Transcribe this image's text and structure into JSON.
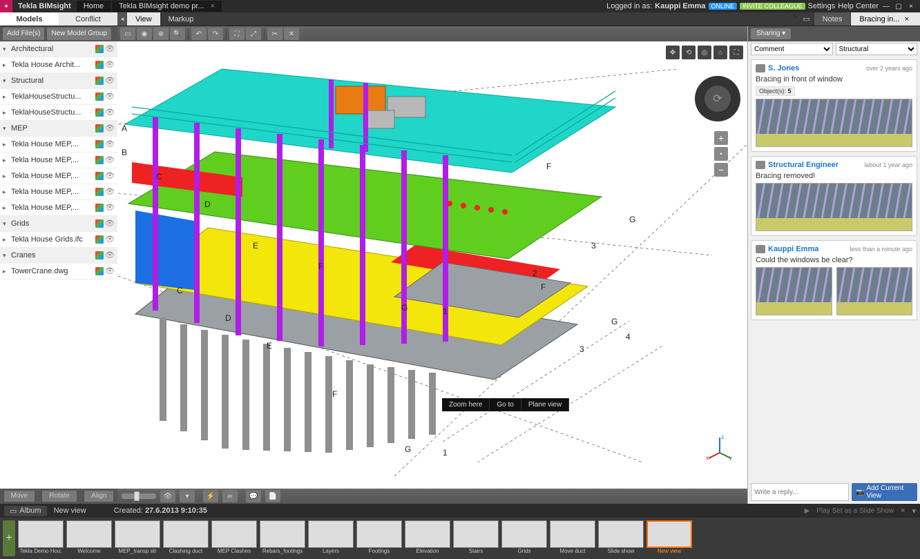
{
  "title_bar": {
    "app_name": "Tekla BIMsight",
    "home_tab": "Home",
    "project_tab": "Tekla BIMsight demo pr...",
    "logged_in_prefix": "Logged in as:",
    "user": "Kauppi Emma",
    "online_badge": "ONLINE",
    "invite_badge": "INVITE COLLEAGUE",
    "settings": "Settings",
    "help": "Help Center"
  },
  "ribbon": {
    "left_tabs": {
      "models": "Models",
      "conflict": "Conflict Checking"
    },
    "center_tabs": {
      "view": "View",
      "markup": "Markup"
    },
    "right_tabs": {
      "notes": "Notes",
      "bracing": "Bracing in..."
    }
  },
  "sidebar": {
    "add_file": "Add File(s)",
    "new_group": "New Model Group",
    "groups": [
      {
        "name": "Architectural",
        "items": [
          "Tekla House Archit..."
        ]
      },
      {
        "name": "Structural",
        "items": [
          "TeklaHouseStructu...",
          "TeklaHouseStructu..."
        ]
      },
      {
        "name": "MEP",
        "items": [
          "Tekla House MEP,...",
          "Tekla House MEP,...",
          "Tekla House MEP,...",
          "Tekla House MEP,...",
          "Tekla House MEP,..."
        ]
      },
      {
        "name": "Grids",
        "items": [
          "Tekla House Grids.ifc"
        ]
      },
      {
        "name": "Cranes",
        "items": [
          "TowerCrane.dwg"
        ]
      }
    ],
    "bottom": {
      "move": "Move",
      "rotate": "Rotate",
      "align": "Align"
    }
  },
  "viewport": {
    "context_menu": {
      "zoom": "Zoom here",
      "goto": "Go to",
      "plane": "Plane view"
    },
    "grid_labels": [
      "A",
      "B",
      "C",
      "D",
      "E",
      "F",
      "G",
      "1",
      "2",
      "3",
      "4"
    ],
    "colors": {
      "floor_cyan": "#1fd6c8",
      "floor_green": "#5fce1f",
      "floor_yellow": "#f2e60a",
      "floor_red": "#e22",
      "floor_grey": "#9aa0a4",
      "wall_blue": "#1b6fe3",
      "column_purple": "#b01ee8",
      "column_grey": "#8f8f8f",
      "roof_box_orange": "#ea7a12",
      "roof_box_grey": "#b8b8b8"
    }
  },
  "right_panel": {
    "sharing": "Sharing",
    "filter_comment": "Comment",
    "filter_structural": "Structural",
    "comments": [
      {
        "author": "S. Jones",
        "time": "over 2 years ago",
        "text": "Bracing in front of window",
        "meta_label": "Object(s):",
        "meta_value": "5",
        "thumbs": 1
      },
      {
        "author": "Structural Engineer",
        "time": "labout 1 year ago",
        "text": "Bracing removed!",
        "thumbs": 1
      },
      {
        "author": "Kauppi Emma",
        "time": "less than a minute ago",
        "text": "Could the windows be clear?",
        "thumbs": 2
      }
    ],
    "reply_placeholder": "Write a reply...",
    "add_view_btn": "Add Current View"
  },
  "meta_strip": {
    "album": "Album",
    "new_view": "New view",
    "created_label": "Created:",
    "created_value": "27.6.2013 9:10:35",
    "slideshow": "Play Set as a Slide Show"
  },
  "album": [
    "Tekla Demo Hou:",
    "Welcome",
    "MEP_transp str",
    "Clashing duct",
    "MEP Clashes",
    "Rebars_footings",
    "Layers",
    "Footings",
    "Elevation",
    "Stairs",
    "Grids",
    "Move duct",
    "Slide show",
    "New view"
  ]
}
